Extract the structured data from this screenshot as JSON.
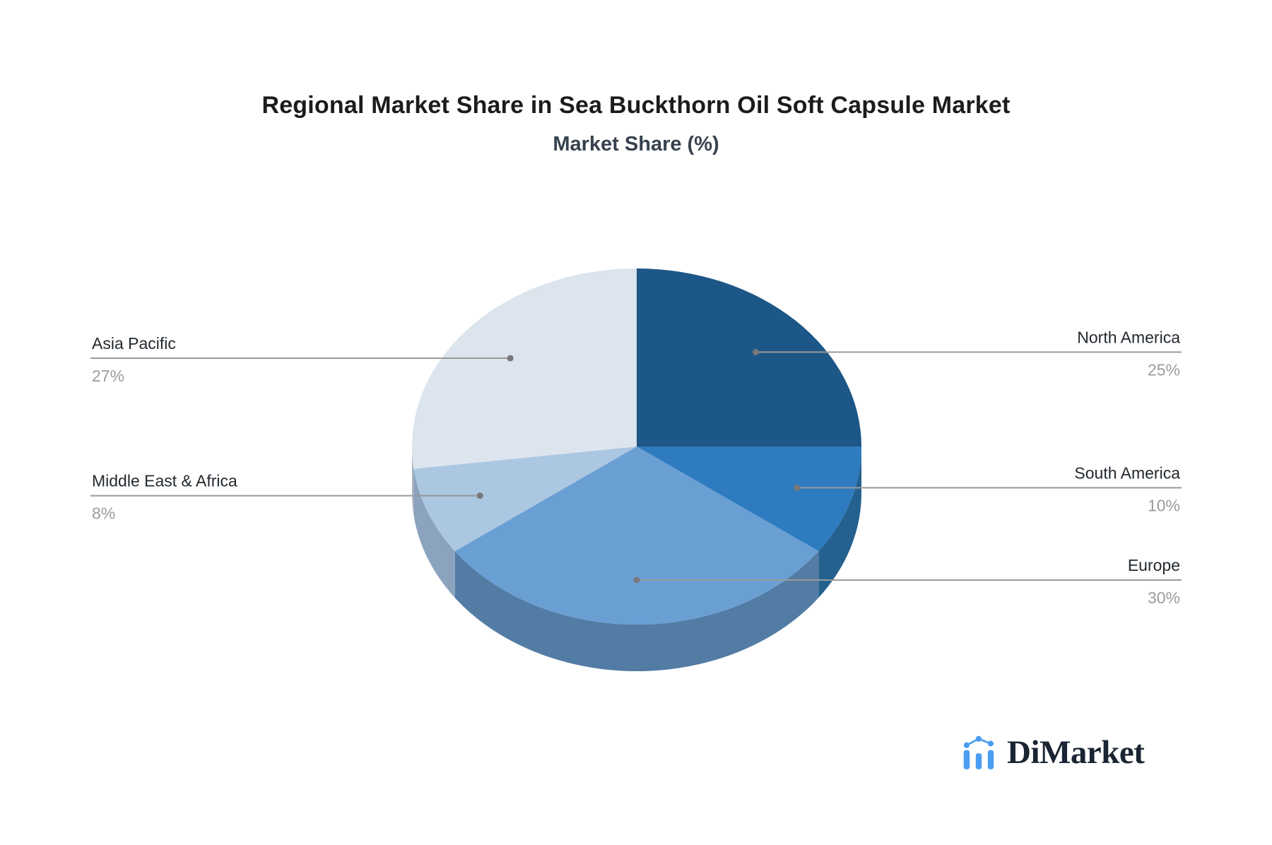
{
  "chart_data": {
    "type": "pie",
    "title": "Regional Market Share in Sea Buckthorn Oil Soft Capsule Market",
    "subtitle": "Market Share (%)",
    "unit": "%",
    "style_3d": true,
    "start_angle_deg": 0,
    "direction": "clockwise",
    "legend_position": "none",
    "segments": [
      {
        "label": "North America",
        "value": 25,
        "display": "25%",
        "color": "#1d5787",
        "side_color": "#1a4d78",
        "label_side": "right"
      },
      {
        "label": "South America",
        "value": 10,
        "display": "10%",
        "color": "#2e7bc0",
        "side_color": "#24618f",
        "label_side": "right"
      },
      {
        "label": "Europe",
        "value": 30,
        "display": "30%",
        "color": "#6a9fd4",
        "side_color": "#537ca5",
        "label_side": "right"
      },
      {
        "label": "Middle East & Africa",
        "value": 8,
        "display": "8%",
        "color": "#abc7e2",
        "side_color": "#8ba3bd",
        "label_side": "left"
      },
      {
        "label": "Asia Pacific",
        "value": 27,
        "display": "27%",
        "color": "#dce4ee",
        "side_color": "#aab5c3",
        "label_side": "left"
      }
    ],
    "style": {
      "leader_line_color": "#9a9a9a",
      "leader_dot_color": "#787878",
      "label_text_color": "#23292f",
      "value_text_color": "#9b9b9b"
    }
  },
  "branding": {
    "name": "DiMarket",
    "icon": "bar-line-chart-icon",
    "icon_color": "#4a9df0",
    "text_color": "#1a2433"
  }
}
